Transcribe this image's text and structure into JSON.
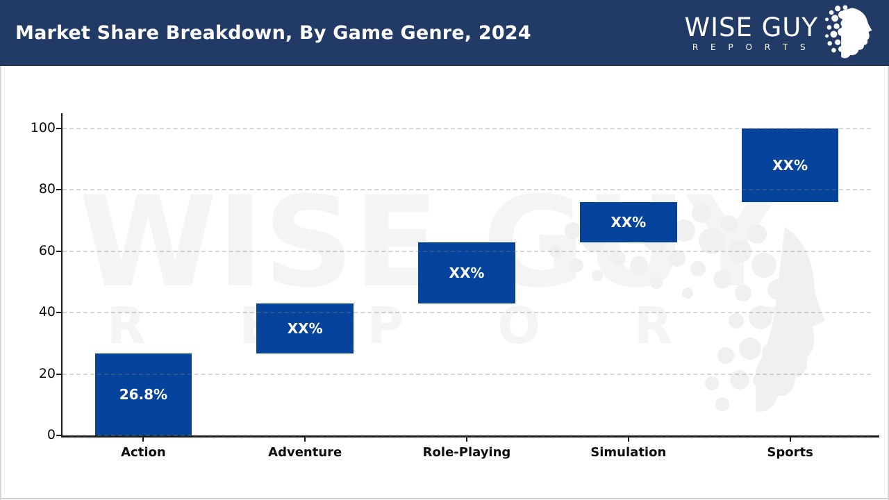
{
  "header": {
    "title": "Market Share Breakdown, By Game Genre, 2024",
    "logo": {
      "line1": "WISE GUY",
      "line2": "R E P O R T S"
    }
  },
  "watermark": {
    "line1": "WISE GUY",
    "line2": "R E P O R T S"
  },
  "colors": {
    "header_bg": "#223a66",
    "bar": "#05439c",
    "axis": "#1a1a1a",
    "grid": "rgba(128,128,128,0.32)",
    "watermark": "#f4f4f4",
    "bar_label": "#ffffff"
  },
  "chart_data": {
    "type": "bar",
    "subtype": "waterfall",
    "title": "Market Share Breakdown, By Game Genre, 2024",
    "categories": [
      "Action",
      "Adventure",
      "Role-Playing",
      "Simulation",
      "Sports"
    ],
    "segments": [
      {
        "category": "Action",
        "start": 0,
        "end": 26.8,
        "label": "26.8%"
      },
      {
        "category": "Adventure",
        "start": 26.8,
        "end": 43,
        "label": "XX%"
      },
      {
        "category": "Role-Playing",
        "start": 43,
        "end": 63,
        "label": "XX%"
      },
      {
        "category": "Simulation",
        "start": 63,
        "end": 76,
        "label": "XX%"
      },
      {
        "category": "Sports",
        "start": 76,
        "end": 100,
        "label": "XX%"
      }
    ],
    "yticks": [
      0,
      20,
      40,
      60,
      80,
      100
    ],
    "ylim": [
      0,
      105
    ],
    "xlabel": "",
    "ylabel": "",
    "grid": "horizontal-dashed",
    "legend": "none",
    "bar_color": "#05439c"
  }
}
